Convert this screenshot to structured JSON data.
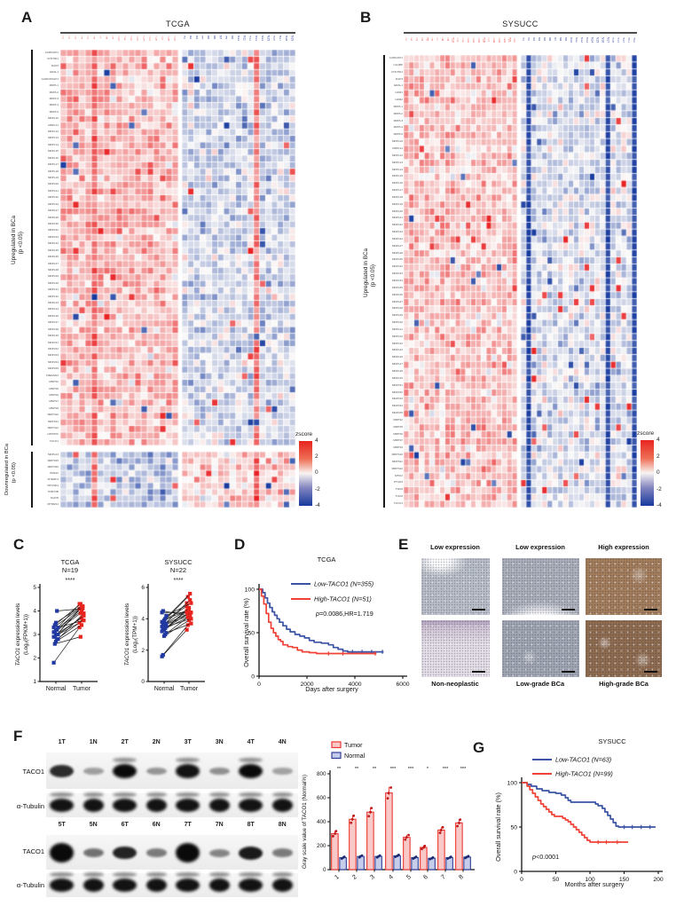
{
  "panel_a": {
    "label": "A",
    "title": "TCGA",
    "side_label_up": [
      "Upregulated in BCa",
      "(p <0.05)"
    ],
    "side_label_down": [
      "Downregulated in BCa",
      "(p <0.05)"
    ],
    "colorbar_title": "zscore",
    "colorbar_ticks": [
      "4",
      "2",
      "0",
      "-2",
      "-4"
    ],
    "sample_prefixes": {
      "tumor": "T",
      "normal": "N"
    },
    "tumor_label_color": "#e8261f",
    "normal_label_color": "#2b3a9b",
    "genes_up": [
      "AURKAIP1",
      "CHCHD1",
      "DAP3",
      "ERAL1",
      "GADD45GIP1",
      "MRPL1",
      "MRPL2",
      "MRPL3",
      "MRPL4",
      "MRPL9",
      "MRPL10",
      "MRPL11",
      "MRPL12",
      "MRPL13",
      "MRPL14",
      "MRPL15",
      "MRPL16",
      "MRPL17",
      "MRPL18",
      "MRPL19",
      "MRPL20",
      "MRPL21",
      "MRPL22",
      "MRPL24",
      "MRPL27",
      "MRPL28",
      "MRPL30",
      "MRPL32",
      "MRPL33",
      "MRPL34",
      "MRPL35",
      "MRPL36",
      "MRPL37",
      "MRPL38",
      "MRPL39",
      "MRPL40",
      "MRPL41",
      "MRPL42",
      "MRPL43",
      "MRPL44",
      "MRPL46",
      "MRPL47",
      "MRPL48",
      "MRPL49",
      "MRPL51",
      "MRPL52",
      "MRPL53",
      "MRPL54",
      "MRPL55",
      "TMEM223",
      "MRPS2",
      "MRPS5",
      "MRPS6",
      "MRPS7",
      "MRPS9",
      "MRPS10",
      "MRPS11",
      "MRPS12",
      "LRPPRC",
      "TACO1"
    ],
    "genes_down": [
      "MRPL23",
      "MRPS25",
      "MRPS36",
      "PDE12",
      "MTERF4",
      "RPUSD4",
      "TRMT2B",
      "NGRN",
      "MTRES1"
    ]
  },
  "panel_b": {
    "label": "B",
    "title": "SYSUCC",
    "side_label": [
      "Upregulated in BCa",
      "(p <0.05)"
    ],
    "colorbar_title": "zscore",
    "colorbar_ticks": [
      "4",
      "2",
      "0",
      "-2",
      "-4"
    ],
    "sample_prefixes": {
      "tumor": "T",
      "normal": "N"
    },
    "tumor_label_color": "#e8261f",
    "normal_label_color": "#2b3a9b",
    "genes": [
      "AURKAIP1",
      "C1QBP",
      "CHCHD1",
      "DAP3",
      "ERAL1",
      "GFM1",
      "GFM2",
      "MRPL1",
      "MRPL2",
      "MRPL3",
      "MRPL4",
      "MRPL9",
      "MRPL10",
      "MRPL11",
      "MRPL12",
      "MRPL13",
      "MRPL14",
      "MRPL15",
      "MRPL16",
      "MRPL17",
      "MRPL18",
      "MRPL19",
      "MRPL20",
      "MRPL21",
      "MRPL22",
      "MRPL23",
      "MRPL24",
      "MRPL27",
      "MRPL28",
      "MRPL30",
      "MRPL32",
      "MRPL33",
      "MRPL34",
      "MRPL35",
      "MRPL36",
      "MRPL37",
      "MRPL38",
      "MRPL39",
      "MRPL40",
      "MRPL41",
      "MRPL42",
      "MRPL43",
      "MRPL44",
      "MRPL46",
      "MRPL47",
      "MRPL48",
      "MRPL49",
      "MRPL51",
      "MRPL52",
      "MRPL53",
      "MRPL54",
      "MRPL55",
      "MRPS2",
      "MRPS5",
      "MRPS6",
      "MRPS7",
      "MRPS9",
      "MRPS10",
      "MRPS11",
      "MRPS12",
      "MTIF2",
      "PTCD3",
      "TSFM",
      "TUFM",
      "TACO1"
    ]
  },
  "panel_c": {
    "label": "C",
    "xticklabels": [
      "Normal",
      "Tumor"
    ],
    "plots": [
      {
        "title": "TCGA",
        "n_label": "N=19",
        "sig": "****",
        "ylabel_line1": "TACO1 expression levels",
        "ylabel_line2": "(Log₂(FPKM+1))"
      },
      {
        "title": "SYSUCC",
        "n_label": "N=22",
        "sig": "****",
        "ylabel_line1": "TACO1 expression levels",
        "ylabel_line2": "(Log₂(TPM+1))"
      }
    ]
  },
  "panel_d": {
    "label": "D"
  },
  "panel_e": {
    "label": "E",
    "top_labels": [
      "Low expression",
      "Low expression",
      "High expression"
    ],
    "bottom_labels": [
      "Non-neoplastic",
      "Low-grade BCa",
      "High-grade BCa"
    ],
    "tile_colors": [
      [
        "#b7bdc6",
        "#a9aeb9",
        "#a37d5c"
      ],
      [
        "#e3dde6",
        "#9fa5b1",
        "#8f6c50"
      ]
    ]
  },
  "panel_f": {
    "label": "F",
    "lane_labels_top": [
      "1T",
      "1N",
      "2T",
      "2N",
      "3T",
      "3N",
      "4T",
      "4N"
    ],
    "lane_labels_bottom": [
      "5T",
      "5N",
      "6T",
      "6N",
      "7T",
      "7N",
      "8T",
      "8N"
    ],
    "blot_row_labels": [
      "TACO1",
      "α-Tubulin"
    ],
    "band_intensity_taco1_top": [
      0.8,
      0.15,
      1.0,
      0.2,
      0.95,
      0.22,
      1.0,
      0.12
    ],
    "band_intensity_taco1_bottom": [
      1.0,
      0.4,
      0.85,
      0.35,
      1.0,
      0.3,
      0.9,
      0.35
    ],
    "tubulin_intensity": 0.95,
    "legend": [
      "Tumor",
      "Normal"
    ],
    "bar_colors": {
      "tumor_stroke": "#ed3833",
      "tumor_fill": "#f9c9c7",
      "normal_stroke": "#2f3f98",
      "normal_fill": "#c5cdea"
    }
  },
  "panel_g": {
    "label": "G"
  },
  "chart_data": [
    {
      "id": "panel_a_heatmap",
      "type": "heatmap",
      "title": "TCGA",
      "zscore_range": [
        -4,
        4
      ],
      "columns": {
        "tumor": 19,
        "normal": 19
      },
      "row_groups": [
        {
          "name": "Upregulated in BCa (p<0.05)",
          "rows": 60,
          "tumor_bias": 1.15,
          "normal_bias": -0.75
        },
        {
          "name": "Downregulated in BCa (p<0.05)",
          "rows": 9,
          "tumor_bias": -1.05,
          "normal_bias": 0.7
        }
      ],
      "hot_tumor_columns": [
        5
      ],
      "hot_normal_columns": [
        12
      ],
      "seed": 7
    },
    {
      "id": "panel_b_heatmap",
      "type": "heatmap",
      "title": "SYSUCC",
      "zscore_range": [
        -4,
        4
      ],
      "columns": {
        "tumor": 22,
        "normal": 22
      },
      "row_groups": [
        {
          "name": "Upregulated in BCa (p<0.05)",
          "rows": 65,
          "tumor_bias": 1.0,
          "normal_bias": -0.55
        }
      ],
      "dark_normal_columns": [
        1,
        16,
        21
      ],
      "seed": 13
    },
    {
      "id": "panel_c_tcga",
      "type": "scatter",
      "title": "TCGA",
      "n": 19,
      "significance": "****",
      "ylabel": "TACO1 expression levels (Log2(FPKM+1))",
      "ylim": [
        1,
        5
      ],
      "yticks": [
        1,
        2,
        3,
        4,
        5
      ],
      "categories": [
        "Normal",
        "Tumor"
      ],
      "normal": [
        1.8,
        2.6,
        2.7,
        2.8,
        2.8,
        2.9,
        2.9,
        3.0,
        3.0,
        3.0,
        3.1,
        3.1,
        3.2,
        3.2,
        3.3,
        3.3,
        3.4,
        3.5,
        4.0
      ],
      "tumor": [
        3.3,
        2.9,
        3.4,
        3.6,
        3.9,
        3.5,
        4.1,
        3.7,
        4.2,
        3.8,
        4.3,
        3.9,
        4.0,
        4.2,
        3.6,
        4.1,
        4.3,
        4.2,
        4.1
      ]
    },
    {
      "id": "panel_c_sysucc",
      "type": "scatter",
      "title": "SYSUCC",
      "n": 22,
      "significance": "****",
      "ylabel": "TACO1 expression levels (Log2(TPM+1))",
      "ylim": [
        0,
        6
      ],
      "yticks": [
        0,
        2,
        4,
        6
      ],
      "categories": [
        "Normal",
        "Tumor"
      ],
      "normal": [
        1.6,
        1.7,
        2.9,
        3.0,
        3.1,
        3.2,
        3.3,
        3.3,
        3.4,
        3.5,
        3.5,
        3.6,
        3.6,
        3.7,
        3.7,
        3.8,
        3.8,
        3.9,
        4.0,
        4.2,
        4.4,
        4.5
      ],
      "tumor": [
        3.3,
        3.6,
        3.9,
        4.2,
        3.7,
        4.5,
        4.1,
        4.7,
        4.4,
        4.0,
        5.0,
        4.6,
        4.2,
        5.2,
        4.4,
        4.8,
        5.4,
        4.6,
        5.6,
        5.0,
        4.4,
        4.2
      ]
    },
    {
      "id": "panel_d_km",
      "type": "line",
      "title": "TCGA",
      "xlabel": "Days after surgery",
      "ylabel": "Overall survival rate (%)",
      "xlim": [
        0,
        6000
      ],
      "ylim": [
        0,
        100
      ],
      "xticks": [
        0,
        2000,
        4000,
        6000
      ],
      "yticks": [
        0,
        50,
        100
      ],
      "stats": "p=0.0086,HR=1.719",
      "series": [
        {
          "name": "Low-TACO1 (N=355)",
          "color": "#3a53a4",
          "points": [
            [
              0,
              100
            ],
            [
              150,
              96
            ],
            [
              250,
              90
            ],
            [
              350,
              84
            ],
            [
              450,
              79
            ],
            [
              550,
              74
            ],
            [
              650,
              70
            ],
            [
              750,
              66
            ],
            [
              850,
              62
            ],
            [
              1000,
              58
            ],
            [
              1150,
              54
            ],
            [
              1300,
              51
            ],
            [
              1500,
              48
            ],
            [
              1700,
              46
            ],
            [
              1900,
              44
            ],
            [
              2100,
              41
            ],
            [
              2300,
              39
            ],
            [
              2600,
              38
            ],
            [
              2900,
              36
            ],
            [
              3100,
              33
            ],
            [
              3300,
              31
            ],
            [
              3500,
              29
            ],
            [
              3700,
              28
            ],
            [
              5200,
              28
            ]
          ],
          "censors": [
            [
              3900,
              28
            ],
            [
              4300,
              28
            ],
            [
              4700,
              28
            ],
            [
              5150,
              28
            ]
          ]
        },
        {
          "name": "High-TACO1 (N=51)",
          "color": "#ef4136",
          "points": [
            [
              0,
              100
            ],
            [
              100,
              92
            ],
            [
              200,
              83
            ],
            [
              300,
              72
            ],
            [
              400,
              62
            ],
            [
              500,
              55
            ],
            [
              600,
              50
            ],
            [
              700,
              46
            ],
            [
              800,
              42
            ],
            [
              900,
              40
            ],
            [
              1000,
              36
            ],
            [
              1200,
              34
            ],
            [
              1400,
              33
            ],
            [
              1600,
              30
            ],
            [
              1800,
              28
            ],
            [
              2100,
              27
            ],
            [
              2400,
              26
            ],
            [
              4900,
              26
            ]
          ],
          "censors": [
            [
              2900,
              26
            ],
            [
              3500,
              26
            ],
            [
              4850,
              26
            ]
          ]
        }
      ]
    },
    {
      "id": "panel_f_bars",
      "type": "bar",
      "ylabel": "Gray scale value of TACO1 (Normal%)",
      "ylim": [
        0,
        800
      ],
      "yticks": [
        0,
        200,
        400,
        600,
        800
      ],
      "categories": [
        "1",
        "2",
        "3",
        "4",
        "5",
        "6",
        "7",
        "8"
      ],
      "series": [
        {
          "name": "Tumor",
          "values": [
            300,
            420,
            480,
            640,
            270,
            185,
            330,
            390
          ]
        },
        {
          "name": "Normal",
          "values": [
            100,
            110,
            110,
            115,
            100,
            95,
            100,
            105
          ]
        }
      ],
      "significance": [
        "**",
        "**",
        "**",
        "***",
        "***",
        "*",
        "***",
        "***"
      ]
    },
    {
      "id": "panel_g_km",
      "type": "line",
      "title": "SYSUCC",
      "xlabel": "Months after surgery",
      "ylabel": "Overall survival rate (%)",
      "xlim": [
        0,
        205
      ],
      "ylim": [
        0,
        100
      ],
      "xticks": [
        0,
        50,
        100,
        150,
        200
      ],
      "yticks": [
        0,
        50,
        100
      ],
      "stats": "p<0.0001",
      "series": [
        {
          "name": "Low-TACO1 (N=63)",
          "color": "#3a53a4",
          "points": [
            [
              0,
              100
            ],
            [
              8,
              98
            ],
            [
              14,
              96
            ],
            [
              22,
              93
            ],
            [
              30,
              91
            ],
            [
              40,
              89
            ],
            [
              50,
              88
            ],
            [
              58,
              86
            ],
            [
              64,
              83
            ],
            [
              68,
              80
            ],
            [
              72,
              78
            ],
            [
              100,
              78
            ],
            [
              108,
              76
            ],
            [
              112,
              74
            ],
            [
              118,
              71
            ],
            [
              122,
              67
            ],
            [
              126,
              63
            ],
            [
              130,
              59
            ],
            [
              134,
              55
            ],
            [
              138,
              51
            ],
            [
              142,
              50
            ],
            [
              196,
              50
            ]
          ],
          "censors": [
            [
              150,
              50
            ],
            [
              162,
              50
            ],
            [
              175,
              50
            ],
            [
              188,
              50
            ]
          ]
        },
        {
          "name": "High-TACO1 (N=99)",
          "color": "#ef4136",
          "points": [
            [
              0,
              100
            ],
            [
              8,
              96
            ],
            [
              12,
              92
            ],
            [
              16,
              88
            ],
            [
              20,
              84
            ],
            [
              24,
              80
            ],
            [
              28,
              76
            ],
            [
              32,
              73
            ],
            [
              36,
              70
            ],
            [
              40,
              67
            ],
            [
              44,
              64
            ],
            [
              48,
              62
            ],
            [
              56,
              62
            ],
            [
              60,
              60
            ],
            [
              64,
              58
            ],
            [
              68,
              56
            ],
            [
              72,
              53
            ],
            [
              76,
              50
            ],
            [
              80,
              47
            ],
            [
              84,
              44
            ],
            [
              88,
              41
            ],
            [
              92,
              38
            ],
            [
              96,
              35
            ],
            [
              100,
              33
            ],
            [
              156,
              33
            ]
          ],
          "censors": [
            [
              112,
              33
            ],
            [
              124,
              33
            ],
            [
              140,
              33
            ]
          ]
        }
      ]
    }
  ]
}
